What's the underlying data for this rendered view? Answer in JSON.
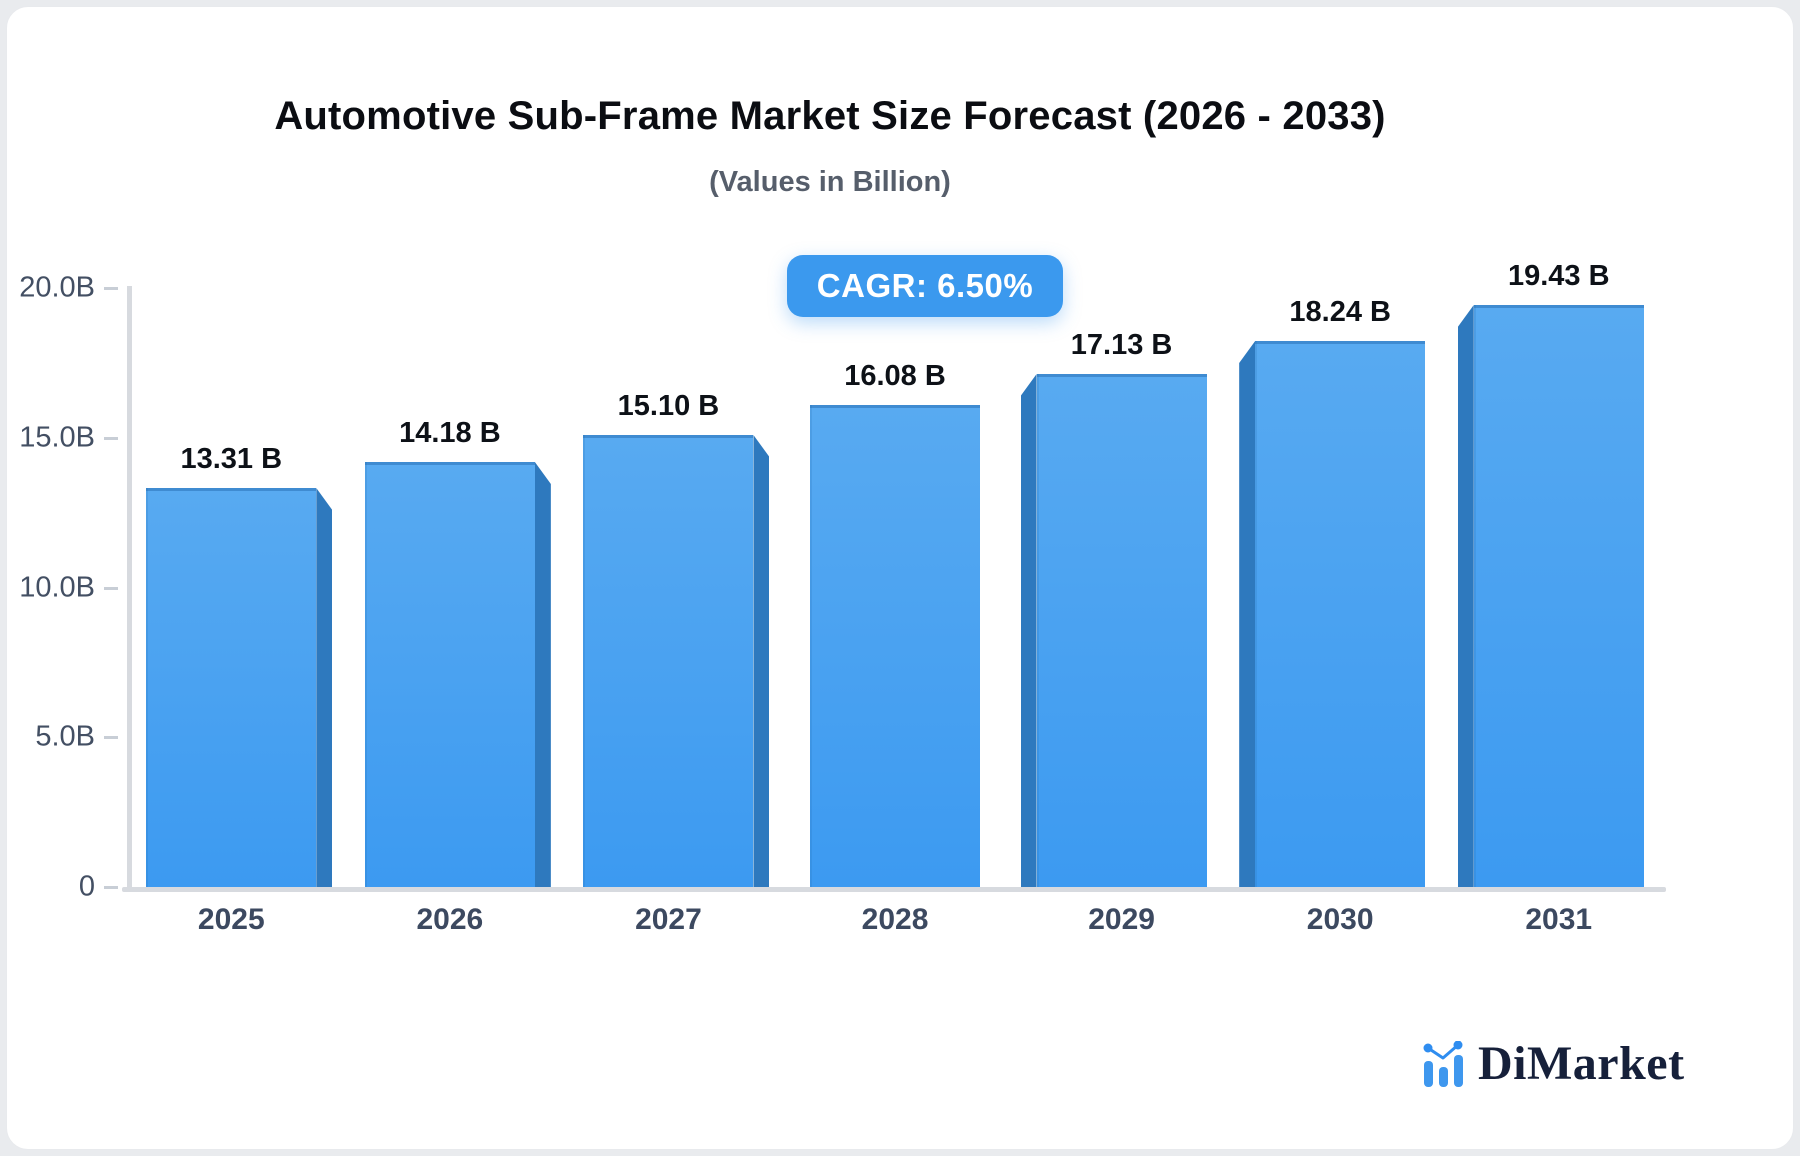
{
  "header": {
    "title": "Automotive Sub-Frame Market Size Forecast (2026 - 2033)",
    "subtitle": "(Values in Billion)",
    "cagr_badge": "CAGR: 6.50%"
  },
  "chart_data": {
    "type": "bar",
    "title": "Automotive Sub-Frame Market Size Forecast (2026 - 2033)",
    "subtitle": "(Values in Billion)",
    "categories": [
      "2025",
      "2026",
      "2027",
      "2028",
      "2029",
      "2030",
      "2031"
    ],
    "values": [
      13.31,
      14.18,
      15.1,
      16.08,
      17.13,
      18.24,
      19.43
    ],
    "value_labels": [
      "13.31 B",
      "14.18 B",
      "15.10 B",
      "16.08 B",
      "17.13 B",
      "18.24 B",
      "19.43 B"
    ],
    "cagr": "6.50%",
    "xlabel": "",
    "ylabel": "",
    "ylim": [
      0,
      20
    ],
    "yticks": [
      {
        "label": "20.0B",
        "value": 20
      },
      {
        "label": "15.0B",
        "value": 15
      },
      {
        "label": "10.0B",
        "value": 10
      },
      {
        "label": "5.0B",
        "value": 5
      },
      {
        "label": "0",
        "value": 0
      }
    ],
    "grid": false,
    "legend": false
  },
  "branding": {
    "logo_text": "DiMarket",
    "logo_icon": "mini-bar-chart-icon"
  },
  "colors": {
    "bar_top": "#58aaf1",
    "bar_bottom": "#3c9af1",
    "bar_side": "#2e79be",
    "badge_bg": "#3b99ee",
    "badge_text": "#ffffff",
    "axis": "#d7dadf",
    "logo_blue": "#3e97ee",
    "logo_navy": "#16203a"
  }
}
